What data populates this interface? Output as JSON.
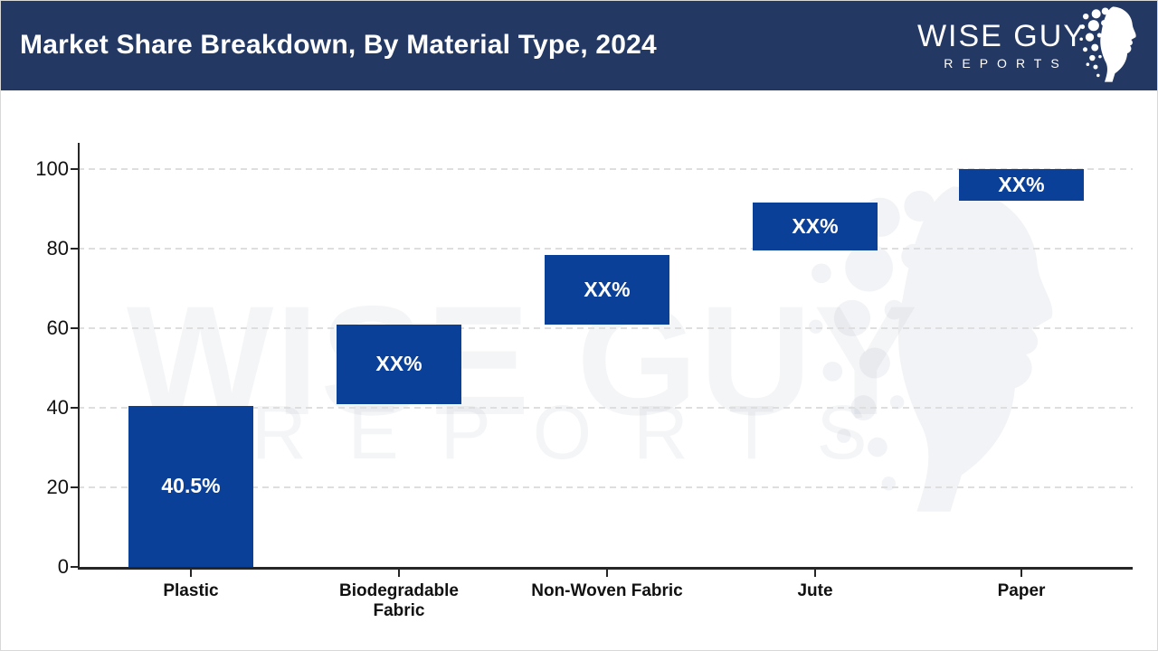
{
  "header": {
    "title": "Market Share Breakdown, By Material Type, 2024",
    "bg_color": "#233862"
  },
  "logo": {
    "line1": "WISE GUY",
    "line2": "REPORTS",
    "icon": "dotted-head-profile"
  },
  "watermark": {
    "line1": "WISE GUY",
    "line2": "REPORTS"
  },
  "colors": {
    "header_bg": "#233862",
    "bar": "#0b4098",
    "bar_label": "#ffffff",
    "axis": "#262626",
    "gridline": "#dedede",
    "tick_label": "#111111"
  },
  "chart_data": {
    "type": "bar",
    "variant": "waterfall-breakdown",
    "title": "Market Share Breakdown, By Material Type, 2024",
    "xlabel": "",
    "ylabel": "",
    "ylim": [
      0,
      106
    ],
    "yticks": [
      0,
      20,
      40,
      60,
      80,
      100
    ],
    "grid": "horizontal-dashed",
    "legend": "none",
    "categories": [
      {
        "label": "Plastic",
        "label_lines": [
          "Plastic"
        ]
      },
      {
        "label": "Biodegradable Fabric",
        "label_lines": [
          "Biodegradable",
          "Fabric"
        ]
      },
      {
        "label": "Non-Woven Fabric",
        "label_lines": [
          "Non-Woven Fabric"
        ]
      },
      {
        "label": "Jute",
        "label_lines": [
          "Jute"
        ]
      },
      {
        "label": "Paper",
        "label_lines": [
          "Paper"
        ]
      }
    ],
    "segments": [
      {
        "category": "Plastic",
        "start": 0,
        "end": 40.5,
        "label": "40.5%",
        "value_shown": 40.5
      },
      {
        "category": "Biodegradable Fabric",
        "start": 41,
        "end": 61,
        "label": "XX%",
        "value_shown": null
      },
      {
        "category": "Non-Woven Fabric",
        "start": 61,
        "end": 78.5,
        "label": "XX%",
        "value_shown": null
      },
      {
        "category": "Jute",
        "start": 79.5,
        "end": 91.5,
        "label": "XX%",
        "value_shown": null
      },
      {
        "category": "Paper",
        "start": 92,
        "end": 100,
        "label": "XX%",
        "value_shown": null
      }
    ]
  }
}
